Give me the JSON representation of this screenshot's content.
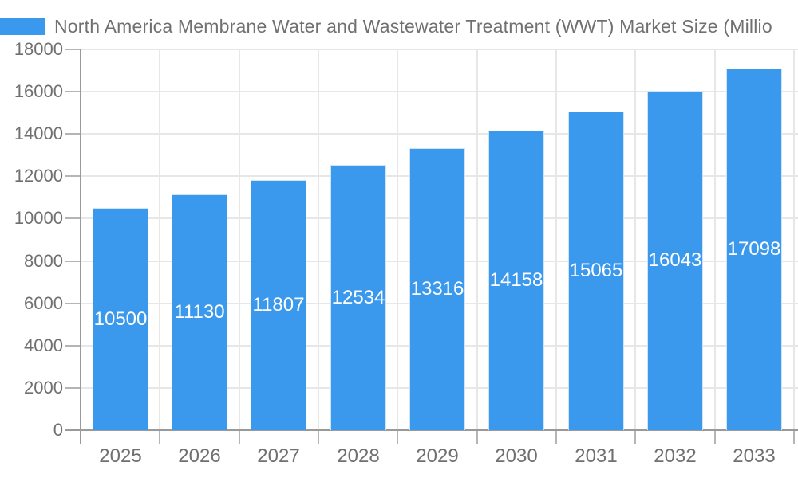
{
  "title": "North America Membrane Water and Wastewater Treatment (WWT) Market Size (Millio",
  "colors": {
    "bar": "#3A99EC",
    "bar_edge": "#cfe4fb",
    "grid": "#e7e7e7",
    "tick": "#b5b5b5",
    "axis": "#9a9a9a",
    "text": "#707070",
    "data_label": "#ffffff",
    "background": "#ffffff"
  },
  "legend": {
    "swatch_color": "#3A99EC",
    "position": "top-left"
  },
  "chart_data": {
    "type": "bar",
    "title": "North America Membrane Water and Wastewater Treatment (WWT) Market Size (Millio",
    "categories": [
      "2025",
      "2026",
      "2027",
      "2028",
      "2029",
      "2030",
      "2031",
      "2032",
      "2033"
    ],
    "values": [
      10500,
      11130,
      11807,
      12534,
      13316,
      14158,
      15065,
      16043,
      17098
    ],
    "series_name": "North America Membrane Water and Wastewater Treatment (WWT) Market Size",
    "xlabel": "",
    "ylabel": "",
    "ylim": [
      0,
      18000
    ],
    "yticks": [
      0,
      2000,
      4000,
      6000,
      8000,
      10000,
      12000,
      14000,
      16000,
      18000
    ],
    "grid": true,
    "data_labels_position": "inside-center"
  }
}
